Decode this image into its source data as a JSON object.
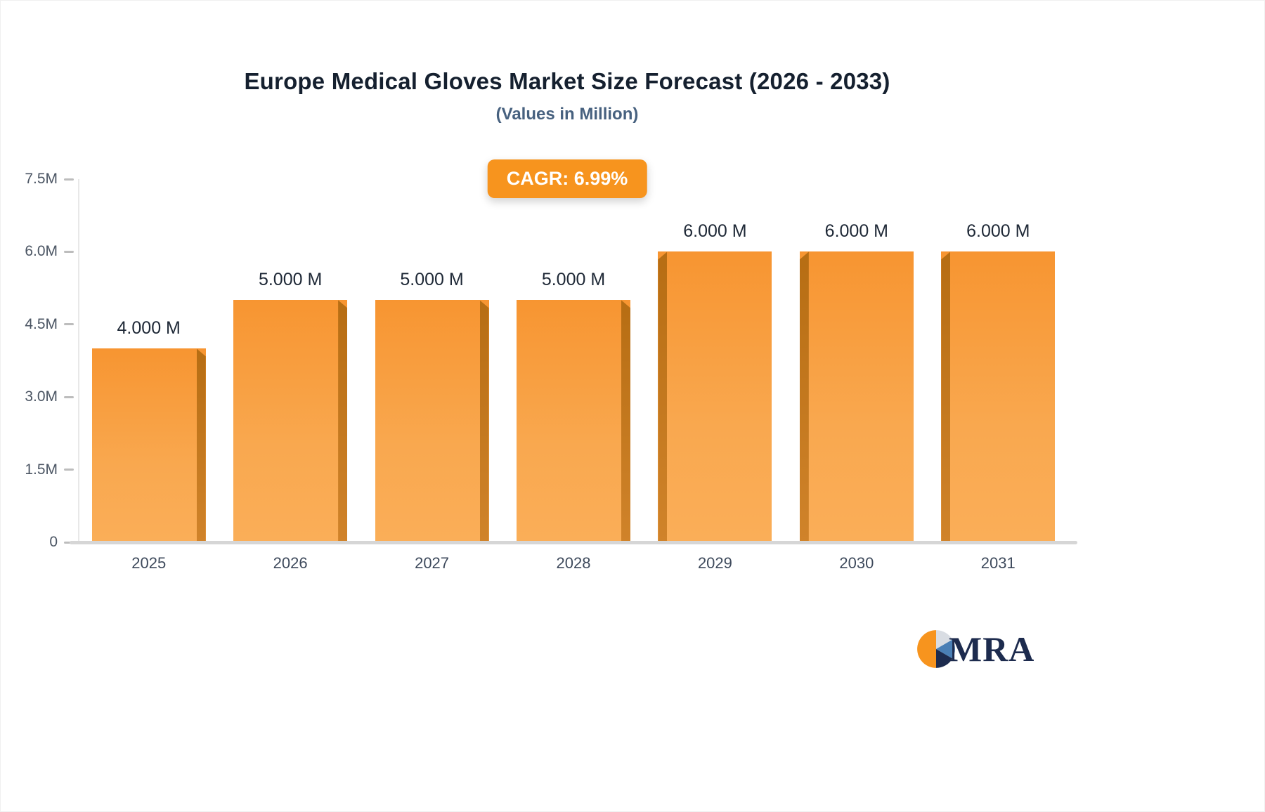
{
  "chart_data": {
    "type": "bar",
    "title": "Europe Medical Gloves Market Size Forecast (2026 - 2033)",
    "subtitle": "(Values in Million)",
    "badge": "CAGR: 6.99%",
    "categories": [
      "2025",
      "2026",
      "2027",
      "2028",
      "2029",
      "2030",
      "2031"
    ],
    "values": [
      4.0,
      5.0,
      5.0,
      5.0,
      6.0,
      6.0,
      6.0
    ],
    "value_labels": [
      "4.000 M",
      "5.000 M",
      "5.000 M",
      "5.000 M",
      "6.000 M",
      "6.000 M",
      "6.000 M"
    ],
    "ylabel": "",
    "xlabel": "",
    "ylim": [
      0,
      7.5
    ],
    "yticks": [
      {
        "value": 0,
        "label": "0"
      },
      {
        "value": 1.5,
        "label": "1.5M"
      },
      {
        "value": 3.0,
        "label": "3.0M"
      },
      {
        "value": 4.5,
        "label": "4.5M"
      },
      {
        "value": 6.0,
        "label": "6.0M"
      },
      {
        "value": 7.5,
        "label": "7.5M"
      }
    ],
    "side_position": [
      "right",
      "right",
      "right",
      "right",
      "left",
      "left",
      "left"
    ],
    "grid": false,
    "legend": false,
    "bar_color_top": "#f79531",
    "bar_color_bottom": "#faae58",
    "bar_side_color": "#c2761b"
  },
  "badge_color": "#f7941e",
  "logo": {
    "text": "MRA"
  },
  "colors": {
    "accent_orange": "#f7941e",
    "title_text": "#15202f",
    "subtitle_text": "#47617f",
    "axis_text": "#4b5563",
    "logo_navy": "#1d2b4e",
    "logo_blue": "#4a7fb5"
  }
}
